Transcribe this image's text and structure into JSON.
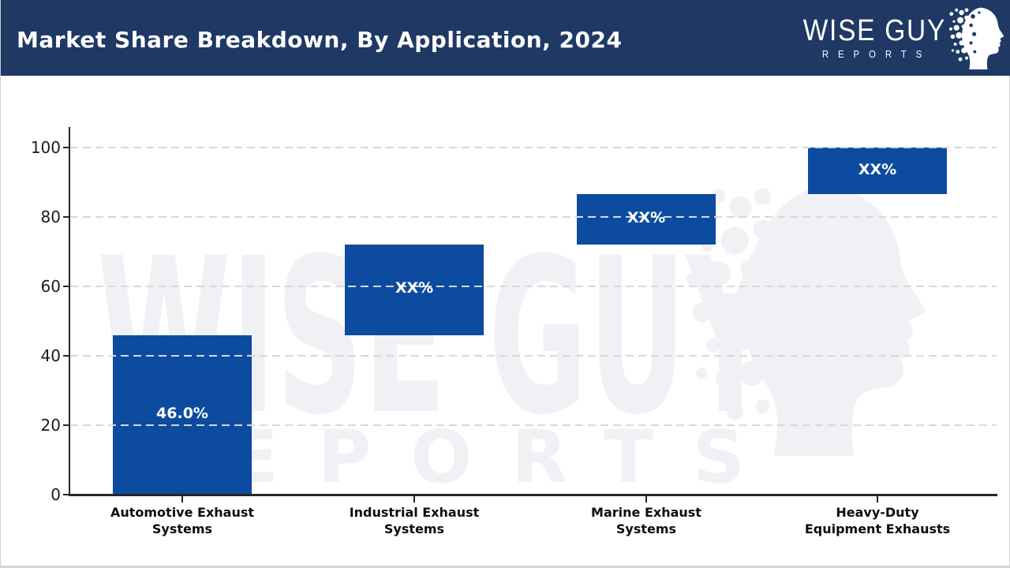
{
  "header": {
    "title": "Market Share Breakdown, By Application, 2024",
    "bg_color": "#1f3864",
    "logo": {
      "line1": "WISE GUY",
      "line2": "REPORTS"
    }
  },
  "watermark": {
    "line1": "WISE GUY",
    "line2": "REPORTS"
  },
  "chart_data": {
    "type": "bar",
    "subtype": "waterfall",
    "title": "Market Share Breakdown, By Application, 2024",
    "xlabel": "",
    "ylabel": "",
    "ylim": [
      0,
      105
    ],
    "grid": "horizontal dashed, drawn over bars",
    "legend": "none",
    "bar_color": "#0c4ba0",
    "yticks": [
      0,
      20,
      40,
      60,
      80,
      100
    ],
    "categories": [
      {
        "line1": "Automotive Exhaust",
        "line2": "Systems"
      },
      {
        "line1": "Industrial Exhaust",
        "line2": "Systems"
      },
      {
        "line1": "Marine Exhaust",
        "line2": "Systems"
      },
      {
        "line1": "Heavy-Duty",
        "line2": "Equipment Exhausts"
      }
    ],
    "segments": [
      {
        "label": "46.0%",
        "start": 0,
        "end": 46,
        "value": 46.0
      },
      {
        "label": "XX%",
        "start": 46,
        "end": 72,
        "value": 26.0
      },
      {
        "label": "XX%",
        "start": 72,
        "end": 86.5,
        "value": 14.5
      },
      {
        "label": "XX%",
        "start": 86.5,
        "end": 100,
        "value": 13.5
      }
    ]
  }
}
